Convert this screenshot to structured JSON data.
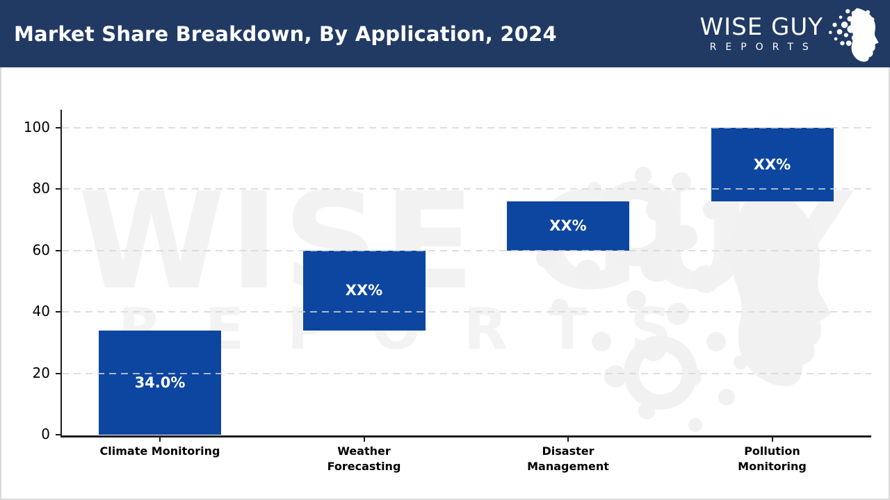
{
  "header": {
    "title": "Market Share Breakdown, By Application, 2024",
    "bg_color": "#213a64",
    "logo": {
      "name": "WISE GUY",
      "sub": "REPORTS"
    }
  },
  "watermark": {
    "line1": "WISE GUY",
    "line2": "REPORTS"
  },
  "chart_data": {
    "type": "bar",
    "subtype": "waterfall",
    "title": "Market Share Breakdown, By Application, 2024",
    "unit": "percent",
    "categories": [
      "Climate Monitoring",
      "Weather Forecasting",
      "Disaster Management",
      "Pollution Monitoring"
    ],
    "category_lines": [
      [
        "Climate Monitoring"
      ],
      [
        "Weather",
        "Forecasting"
      ],
      [
        "Disaster",
        "Management"
      ],
      [
        "Pollution",
        "Monitoring"
      ]
    ],
    "series": [
      {
        "name": "Market Share",
        "segments": [
          {
            "category": "Climate Monitoring",
            "start": 0,
            "end": 34,
            "label": "34.0%"
          },
          {
            "category": "Weather Forecasting",
            "start": 34,
            "end": 60,
            "label": "XX%"
          },
          {
            "category": "Disaster Management",
            "start": 60,
            "end": 76,
            "label": "XX%"
          },
          {
            "category": "Pollution Monitoring",
            "start": 76,
            "end": 100,
            "label": "XX%"
          }
        ]
      }
    ],
    "bar_color": "#0d46a0",
    "axis_color": "#1a1a1a",
    "grid_color": "#d6d6d6",
    "yticks": [
      0,
      20,
      40,
      60,
      80,
      100
    ],
    "ylim": [
      0,
      106
    ],
    "grid": "dashed-horizontal",
    "legend": "none"
  }
}
